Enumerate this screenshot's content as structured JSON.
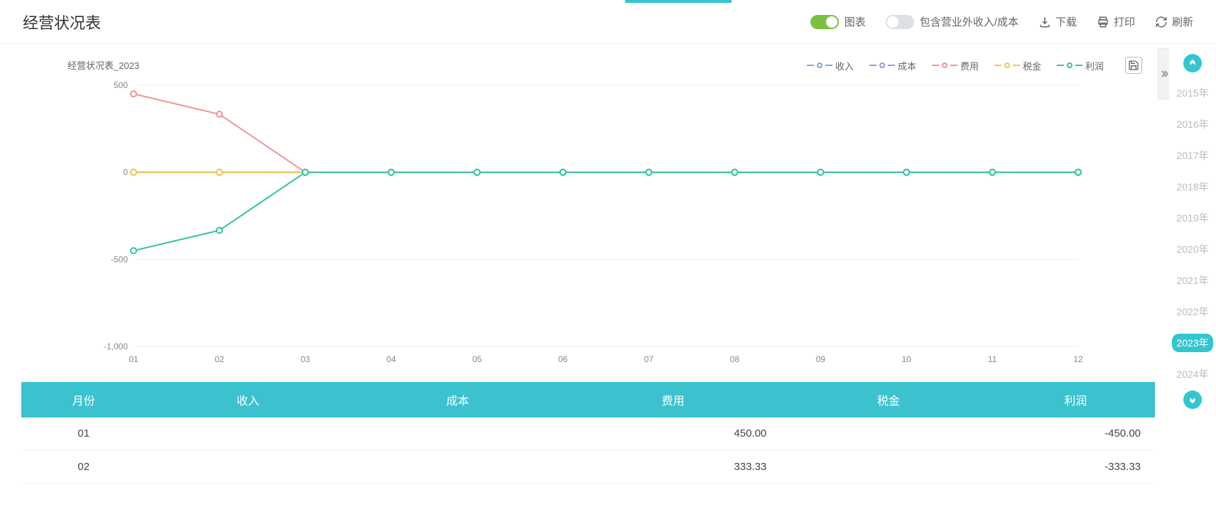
{
  "header": {
    "title": "经营状况表",
    "toggles": {
      "chart": {
        "label": "图表",
        "on": true
      },
      "include_nonop": {
        "label": "包含营业外收入/成本",
        "on": false
      }
    },
    "actions": {
      "download": "下载",
      "print": "打印",
      "refresh": "刷新"
    }
  },
  "chart": {
    "title": "经营状况表_2023",
    "type": "line",
    "x_labels": [
      "01",
      "02",
      "03",
      "04",
      "05",
      "06",
      "07",
      "08",
      "09",
      "10",
      "11",
      "12"
    ],
    "ylim": [
      -1000,
      500
    ],
    "yticks": [
      500,
      0,
      -500,
      -1000
    ],
    "grid_color": "#eeeeee",
    "axis_text_color": "#888888",
    "background_color": "#ffffff",
    "marker_fill": "#ffffff",
    "marker_stroke_width": 2,
    "line_width": 2,
    "series": [
      {
        "key": "income",
        "label": "收入",
        "color": "#7aa7e8",
        "values": [
          0,
          0,
          0,
          0,
          0,
          0,
          0,
          0,
          0,
          0,
          0,
          0
        ]
      },
      {
        "key": "cost",
        "label": "成本",
        "color": "#a68ee9",
        "values": [
          0,
          0,
          0,
          0,
          0,
          0,
          0,
          0,
          0,
          0,
          0,
          0
        ]
      },
      {
        "key": "expense",
        "label": "费用",
        "color": "#f39393",
        "values": [
          450,
          333.33,
          0,
          0,
          0,
          0,
          0,
          0,
          0,
          0,
          0,
          0
        ]
      },
      {
        "key": "tax",
        "label": "税金",
        "color": "#f0c74f",
        "values": [
          0,
          0,
          0,
          0,
          0,
          0,
          0,
          0,
          0,
          0,
          0,
          0
        ]
      },
      {
        "key": "profit",
        "label": "利润",
        "color": "#2fc5a3",
        "values": [
          -450,
          -333.33,
          0,
          0,
          0,
          0,
          0,
          0,
          0,
          0,
          0,
          0
        ]
      }
    ]
  },
  "table": {
    "header_bg": "#3cc2cf",
    "header_text_color": "#ffffff",
    "columns": [
      "月份",
      "收入",
      "成本",
      "费用",
      "税金",
      "利润"
    ],
    "col_widths_pct": [
      11,
      18,
      19,
      19,
      19,
      14
    ],
    "rows": [
      {
        "month": "01",
        "income": "",
        "cost": "",
        "expense": "450.00",
        "tax": "",
        "profit": "-450.00"
      },
      {
        "month": "02",
        "income": "",
        "cost": "",
        "expense": "333.33",
        "tax": "",
        "profit": "-333.33"
      }
    ]
  },
  "sidebar": {
    "years": [
      "2015年",
      "2016年",
      "2017年",
      "2018年",
      "2019年",
      "2020年",
      "2021年",
      "2022年",
      "2023年",
      "2024年"
    ],
    "active_year": "2023年",
    "accent_color": "#33c6cf"
  }
}
